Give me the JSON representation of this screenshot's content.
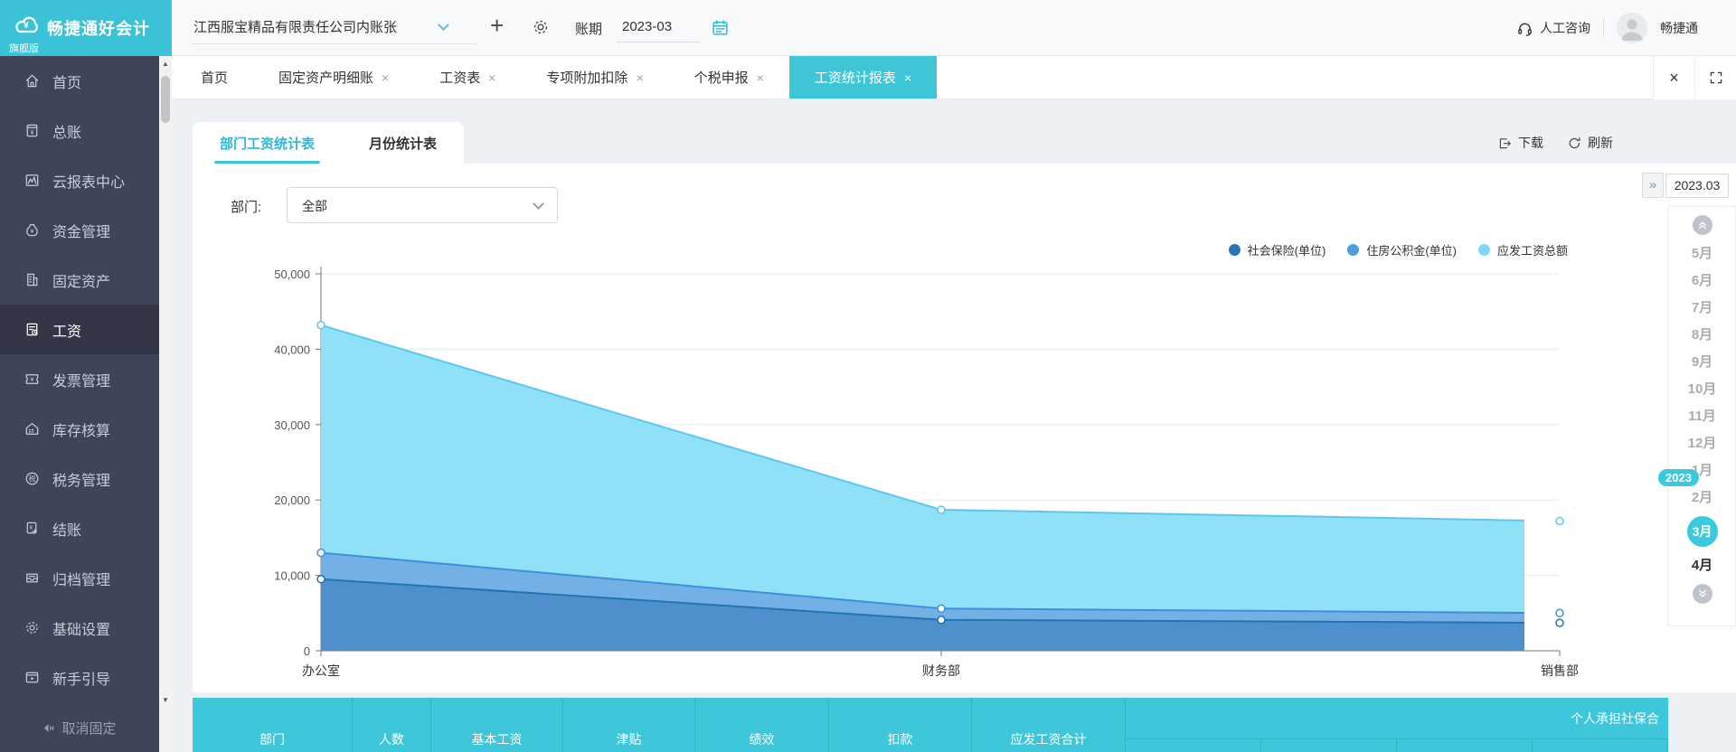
{
  "colors": {
    "brand_cyan": "#3BC2D6",
    "active_tab_cyan": "#3EC5D6",
    "sidebar_bg": "#404459",
    "sidebar_active_bg": "#333646",
    "table_header_bg": "#3EC7DA",
    "series_social_insurance": "#2776B4",
    "series_housing_fund": "#4C9EDF",
    "series_gross_salary": "#7DD7F5"
  },
  "icons": {
    "close": "×",
    "plus": "+",
    "collapse": "»",
    "scroll_up": "▲",
    "scroll_down": "▼"
  },
  "brand": {
    "title": "畅捷通好会计",
    "edition": "旗舰版"
  },
  "topbar": {
    "company": "江西服宝精品有限责任公司内账张",
    "period_label": "账期",
    "period_value": "2023-03",
    "consult": "人工咨询",
    "username": "畅捷通"
  },
  "sidebar": {
    "items": [
      {
        "label": "首页"
      },
      {
        "label": "总账"
      },
      {
        "label": "云报表中心"
      },
      {
        "label": "资金管理"
      },
      {
        "label": "固定资产"
      },
      {
        "label": "工资"
      },
      {
        "label": "发票管理"
      },
      {
        "label": "库存核算"
      },
      {
        "label": "税务管理"
      },
      {
        "label": "结账"
      },
      {
        "label": "归档管理"
      },
      {
        "label": "基础设置"
      },
      {
        "label": "新手引导"
      }
    ],
    "active_item": "工资",
    "unpin_label": "取消固定"
  },
  "tabs": {
    "items": [
      {
        "label": "首页"
      },
      {
        "label": "固定资产明细账"
      },
      {
        "label": "工资表"
      },
      {
        "label": "专项附加扣除"
      },
      {
        "label": "个税申报"
      },
      {
        "label": "工资统计报表"
      }
    ],
    "active_tab": "工资统计报表"
  },
  "report": {
    "subtabs": [
      {
        "label": "部门工资统计表",
        "active": true
      },
      {
        "label": "月份统计表",
        "active": false
      }
    ],
    "download_label": "下载",
    "refresh_label": "刷新",
    "filter_label": "部门:",
    "filter_value": "全部"
  },
  "chart_data": {
    "type": "area",
    "categories": [
      "办公室",
      "财务部",
      "销售部"
    ],
    "series": [
      {
        "name": "社会保险(单位)",
        "color": "#2776B4",
        "values": [
          9500,
          4100,
          3700
        ]
      },
      {
        "name": "住房公积金(单位)",
        "color": "#4C9EDF",
        "values": [
          13000,
          5600,
          5000
        ]
      },
      {
        "name": "应发工资总额",
        "color": "#7DD7F5",
        "values": [
          43200,
          18700,
          17200
        ]
      }
    ],
    "ylim": [
      0,
      50000
    ],
    "y_ticks": [
      "50,000",
      "40,000",
      "30,000",
      "20,000",
      "10,000",
      "0"
    ],
    "grid": true,
    "legend_position": "top-right"
  },
  "table": {
    "columns": [
      "部门",
      "人数",
      "基本工资",
      "津贴",
      "绩效",
      "扣款",
      "应发工资合计"
    ],
    "group_header": "个人承担社保合"
  },
  "month_panel": {
    "display_value": "2023.03",
    "year_badge": "2023",
    "months": [
      "5月",
      "6月",
      "7月",
      "8月",
      "9月",
      "10月",
      "11月",
      "12月",
      "1月",
      "2月",
      "3月",
      "4月"
    ],
    "selected_month": "3月"
  }
}
